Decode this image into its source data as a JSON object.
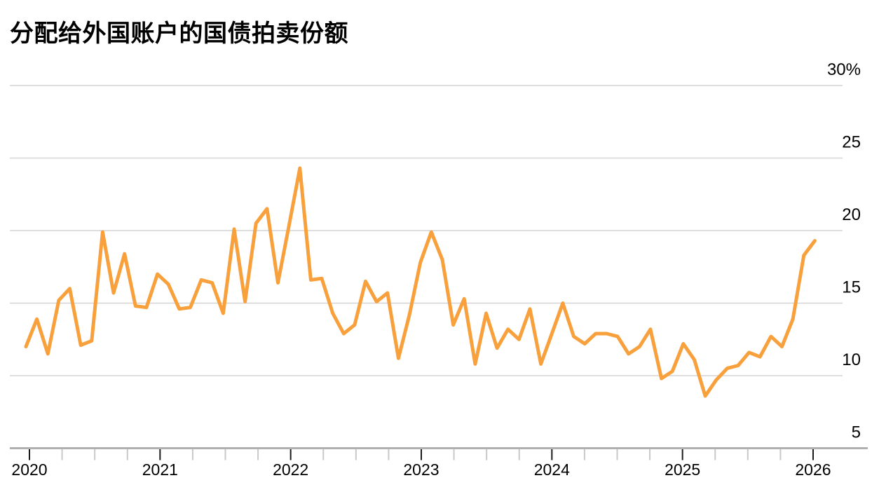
{
  "title": "分配给外国账户的国债拍卖份额",
  "chart_data": {
    "type": "line",
    "title": "分配给外国账户的国债拍卖份额",
    "unit": "%",
    "cadence": "monthly",
    "x_range": [
      "2020-01",
      "2026-01"
    ],
    "x_tick_labels": [
      "2020",
      "2021",
      "2022",
      "2023",
      "2024",
      "2025",
      "2026"
    ],
    "x_minor_ticks_per_year": 3,
    "y_ticks": [
      {
        "value": 30,
        "label": "30%"
      },
      {
        "value": 25,
        "label": "25"
      },
      {
        "value": 20,
        "label": "20"
      },
      {
        "value": 15,
        "label": "15"
      },
      {
        "value": 10,
        "label": "10"
      },
      {
        "value": 5,
        "label": "5"
      }
    ],
    "ylim": [
      5,
      30
    ],
    "grid": "horizontal",
    "legend": "none",
    "y_axis_side": "right",
    "colors": {
      "line": "#F7A03C",
      "gridline": "#D4D4D4",
      "axis_line": "#B0B0B0",
      "tick_major": "#1A1A1A",
      "tick_minor": "#C9C9C9",
      "text": "#000000",
      "background": "#FFFFFF"
    },
    "values": [
      12.0,
      13.9,
      11.5,
      15.2,
      16.0,
      12.1,
      12.4,
      19.9,
      15.7,
      18.4,
      14.8,
      14.7,
      17.0,
      16.3,
      14.6,
      14.7,
      16.6,
      16.4,
      14.3,
      20.1,
      15.1,
      20.5,
      21.5,
      16.4,
      20.3,
      24.3,
      16.6,
      16.7,
      14.3,
      12.9,
      13.5,
      16.5,
      15.1,
      15.7,
      11.2,
      14.2,
      17.8,
      19.9,
      18.0,
      13.5,
      15.3,
      10.8,
      14.3,
      11.9,
      13.2,
      12.5,
      14.6,
      10.8,
      12.9,
      15.0,
      12.7,
      12.2,
      12.9,
      12.9,
      12.7,
      11.5,
      12.0,
      13.2,
      9.8,
      10.3,
      12.2,
      11.1,
      8.6,
      9.7,
      10.5,
      10.7,
      11.6,
      11.3,
      12.7,
      12.0,
      13.9,
      18.3,
      19.3
    ]
  }
}
